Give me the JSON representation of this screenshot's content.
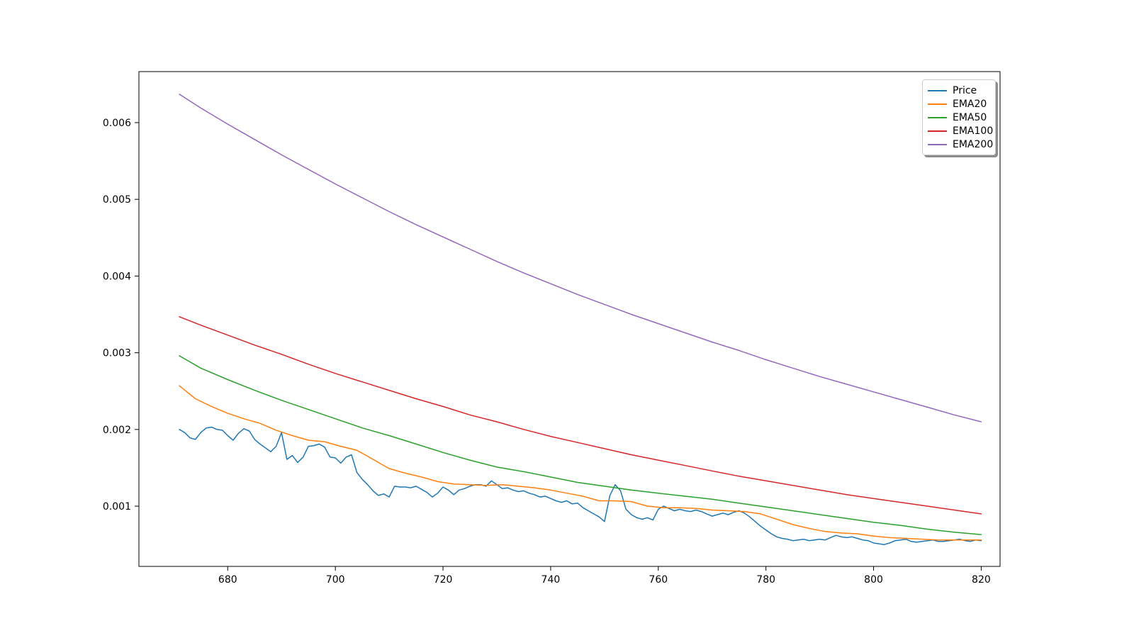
{
  "figure": {
    "background": "#ffffff",
    "frame_color": "#000000"
  },
  "legend": {
    "position": "upper right"
  },
  "chart_data": {
    "type": "line",
    "title": "",
    "xlabel": "",
    "ylabel": "",
    "grid": false,
    "xlim": [
      663.5,
      823.5
    ],
    "ylim": [
      0.000215,
      0.006665
    ],
    "x_ticks": [
      680,
      700,
      720,
      740,
      760,
      780,
      800,
      820
    ],
    "x_tick_labels": [
      "680",
      "700",
      "720",
      "740",
      "760",
      "780",
      "800",
      "820"
    ],
    "y_ticks": [
      0.001,
      0.002,
      0.003,
      0.004,
      0.005,
      0.006
    ],
    "y_tick_labels": [
      "0.001",
      "0.002",
      "0.003",
      "0.004",
      "0.005",
      "0.006"
    ],
    "legend_position": "upper right",
    "series": [
      {
        "name": "Price",
        "color": "#1f77b4",
        "x_range": [
          671,
          820,
          1
        ],
        "values": [
          0.002,
          0.00196,
          0.00189,
          0.00187,
          0.00196,
          0.00202,
          0.00203,
          0.002,
          0.00199,
          0.00192,
          0.00186,
          0.00195,
          0.00201,
          0.00198,
          0.00187,
          0.00181,
          0.00176,
          0.00171,
          0.00178,
          0.00196,
          0.00161,
          0.00166,
          0.00157,
          0.00164,
          0.00178,
          0.00179,
          0.00181,
          0.00177,
          0.00164,
          0.00163,
          0.00156,
          0.00164,
          0.00167,
          0.00144,
          0.00135,
          0.00128,
          0.0012,
          0.00114,
          0.00116,
          0.00112,
          0.00126,
          0.00125,
          0.00125,
          0.00124,
          0.00126,
          0.00122,
          0.00118,
          0.00112,
          0.00117,
          0.00125,
          0.00121,
          0.00115,
          0.00121,
          0.00123,
          0.00126,
          0.00128,
          0.00128,
          0.00126,
          0.00133,
          0.00128,
          0.00123,
          0.00124,
          0.00121,
          0.00119,
          0.0012,
          0.00117,
          0.00115,
          0.00112,
          0.00113,
          0.0011,
          0.00107,
          0.00105,
          0.00107,
          0.00103,
          0.00104,
          0.00098,
          0.00094,
          0.0009,
          0.00086,
          0.0008,
          0.00114,
          0.00128,
          0.0012,
          0.00096,
          0.00089,
          0.00085,
          0.00083,
          0.00085,
          0.00082,
          0.00096,
          0.001,
          0.00097,
          0.00094,
          0.00096,
          0.00094,
          0.00093,
          0.00095,
          0.00093,
          0.0009,
          0.00087,
          0.00089,
          0.00091,
          0.00089,
          0.00092,
          0.00094,
          0.00091,
          0.00086,
          0.0008,
          0.00074,
          0.00069,
          0.00064,
          0.0006,
          0.00058,
          0.00057,
          0.00055,
          0.00056,
          0.00057,
          0.00055,
          0.00056,
          0.00057,
          0.00056,
          0.00059,
          0.00062,
          0.0006,
          0.00059,
          0.0006,
          0.00058,
          0.00056,
          0.00055,
          0.00052,
          0.00051,
          0.0005,
          0.00052,
          0.00055,
          0.00056,
          0.00057,
          0.00054,
          0.00053,
          0.00054,
          0.00055,
          0.00056,
          0.00054,
          0.00054,
          0.00055,
          0.00056,
          0.00057,
          0.00055,
          0.00054,
          0.00056,
          0.00055
        ]
      },
      {
        "name": "EMA20",
        "color": "#ff7f0e",
        "x": [
          671,
          674,
          677,
          680,
          683,
          686,
          689,
          692,
          695,
          698,
          701,
          704,
          707,
          710,
          713,
          716,
          719,
          722,
          725,
          728,
          731,
          734,
          737,
          740,
          743,
          746,
          749,
          752,
          755,
          758,
          761,
          764,
          767,
          770,
          773,
          776,
          779,
          782,
          785,
          788,
          791,
          794,
          797,
          800,
          803,
          806,
          809,
          812,
          815,
          818,
          820
        ],
        "values": [
          0.00257,
          0.0024,
          0.0023,
          0.00221,
          0.00214,
          0.00208,
          0.00199,
          0.00192,
          0.00186,
          0.00184,
          0.00178,
          0.00173,
          0.00161,
          0.00149,
          0.00143,
          0.00138,
          0.00132,
          0.00129,
          0.00128,
          0.00127,
          0.00128,
          0.00126,
          0.00124,
          0.00121,
          0.00117,
          0.00113,
          0.00107,
          0.00107,
          0.00106,
          0.001,
          0.00098,
          0.00098,
          0.00097,
          0.00095,
          0.00094,
          0.00093,
          0.0009,
          0.00083,
          0.00076,
          0.00071,
          0.00067,
          0.00065,
          0.00064,
          0.00061,
          0.00059,
          0.00058,
          0.00057,
          0.00056,
          0.00056,
          0.00056,
          0.00056
        ]
      },
      {
        "name": "EMA50",
        "color": "#2ca02c",
        "x": [
          671,
          675,
          680,
          685,
          690,
          695,
          700,
          705,
          710,
          715,
          720,
          725,
          730,
          735,
          740,
          745,
          750,
          755,
          760,
          765,
          770,
          775,
          780,
          785,
          790,
          795,
          800,
          805,
          810,
          815,
          820
        ],
        "values": [
          0.00296,
          0.0028,
          0.00265,
          0.00251,
          0.00238,
          0.00226,
          0.00214,
          0.00202,
          0.00192,
          0.00181,
          0.0017,
          0.0016,
          0.00151,
          0.00145,
          0.00138,
          0.00131,
          0.00126,
          0.00121,
          0.00117,
          0.00113,
          0.00109,
          0.00104,
          0.00099,
          0.00094,
          0.00089,
          0.00084,
          0.00079,
          0.00075,
          0.0007,
          0.00066,
          0.00063
        ]
      },
      {
        "name": "EMA100",
        "color": "#d62728",
        "x": [
          671,
          675,
          680,
          685,
          690,
          695,
          700,
          705,
          710,
          715,
          720,
          725,
          730,
          735,
          740,
          745,
          750,
          755,
          760,
          765,
          770,
          775,
          780,
          785,
          790,
          795,
          800,
          805,
          810,
          815,
          820
        ],
        "values": [
          0.00347,
          0.00336,
          0.00323,
          0.0031,
          0.00298,
          0.00285,
          0.00273,
          0.00262,
          0.00251,
          0.0024,
          0.0023,
          0.00219,
          0.0021,
          0.002,
          0.00191,
          0.00183,
          0.00175,
          0.00167,
          0.0016,
          0.00153,
          0.00146,
          0.00139,
          0.00133,
          0.00127,
          0.00121,
          0.00115,
          0.0011,
          0.00105,
          0.001,
          0.00095,
          0.0009
        ]
      },
      {
        "name": "EMA200",
        "color": "#9467bd",
        "x": [
          671,
          675,
          680,
          685,
          690,
          695,
          700,
          705,
          710,
          715,
          720,
          725,
          730,
          735,
          740,
          745,
          750,
          755,
          760,
          765,
          770,
          775,
          780,
          785,
          790,
          795,
          800,
          805,
          810,
          815,
          820
        ],
        "values": [
          0.00637,
          0.00619,
          0.00598,
          0.00578,
          0.00558,
          0.00539,
          0.0052,
          0.00502,
          0.00484,
          0.00467,
          0.00451,
          0.00435,
          0.00419,
          0.00404,
          0.0039,
          0.00376,
          0.00363,
          0.0035,
          0.00338,
          0.00326,
          0.00314,
          0.00303,
          0.00291,
          0.0028,
          0.00269,
          0.00259,
          0.00249,
          0.00239,
          0.00229,
          0.00219,
          0.0021
        ]
      }
    ]
  }
}
